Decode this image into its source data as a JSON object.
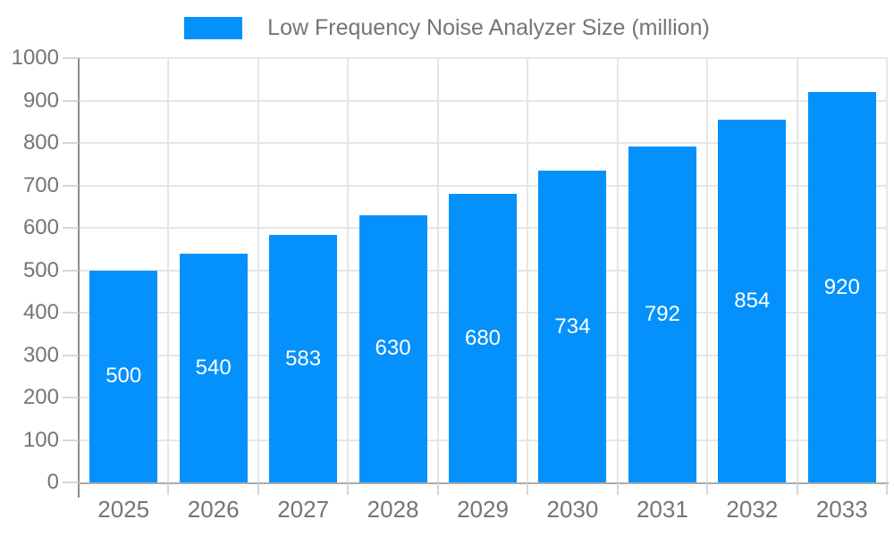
{
  "chart_data": {
    "type": "bar",
    "categories": [
      "2025",
      "2026",
      "2027",
      "2028",
      "2029",
      "2030",
      "2031",
      "2032",
      "2033"
    ],
    "series": [
      {
        "name": "Low Frequency Noise Analyzer Size (million)",
        "values": [
          500,
          540,
          583,
          630,
          680,
          734,
          792,
          854,
          920
        ]
      }
    ],
    "legend": [
      "Low Frequency Noise Analyzer Size (million)"
    ],
    "legend_position": "top-center",
    "xlabel": "",
    "ylabel": "",
    "ylim": [
      0,
      1000
    ],
    "ytick_step": 100,
    "yticks": [
      0,
      100,
      200,
      300,
      400,
      500,
      600,
      700,
      800,
      900,
      1000
    ],
    "grid": true,
    "value_label_position": "inside-center",
    "colors": {
      "bar": "#0591fb",
      "value_label": "#ffffff",
      "axis_text": "#757575",
      "grid_line": "#e6e6e6",
      "tick_line": "#d6d6d6",
      "y_axis_line": "#8c8c8c",
      "x_axis_line": "#ababab",
      "background": "#ffffff"
    }
  }
}
